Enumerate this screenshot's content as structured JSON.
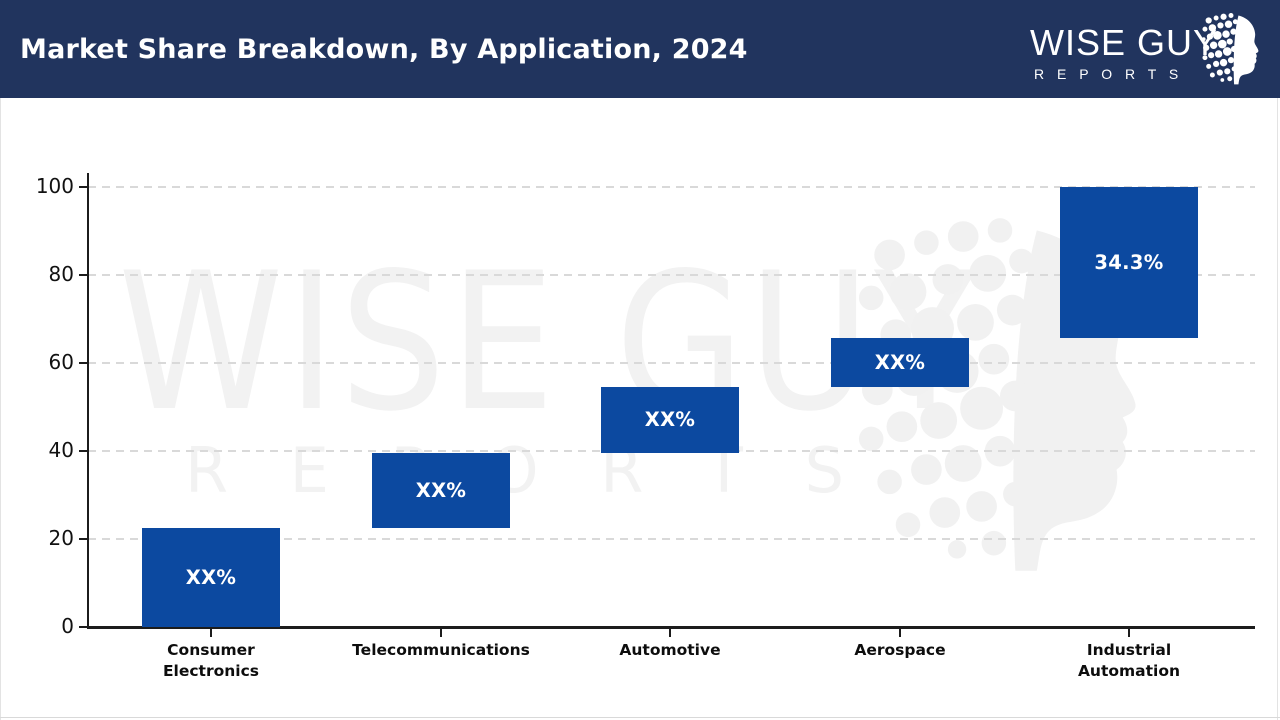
{
  "header": {
    "bg_color": "#21345e",
    "title": "Market Share Breakdown, By Application, 2024",
    "logo": {
      "wordmark": "WISE GUY",
      "subtitle": "R E P O R T S"
    }
  },
  "watermark": {
    "wordmark": "WISE GUY",
    "subtitle": "R E P O R T S"
  },
  "chart_data": {
    "type": "bar",
    "variant": "waterfall",
    "title": "Market Share Breakdown, By Application, 2024",
    "unit": "percent market share",
    "categories": [
      "Consumer Electronics",
      "Telecommunications",
      "Automotive",
      "Aerospace",
      "Industrial Automation"
    ],
    "category_label_lines": [
      [
        "Consumer",
        "Electronics"
      ],
      [
        "Telecommunications"
      ],
      [
        "Automotive"
      ],
      [
        "Aerospace"
      ],
      [
        "Industrial",
        "Automation"
      ]
    ],
    "segments": [
      {
        "category": "Consumer Electronics",
        "start": 0,
        "end": 22.5,
        "label": "XX%"
      },
      {
        "category": "Telecommunications",
        "start": 22.5,
        "end": 39.6,
        "label": "XX%"
      },
      {
        "category": "Automotive",
        "start": 39.6,
        "end": 54.5,
        "label": "XX%"
      },
      {
        "category": "Aerospace",
        "start": 54.5,
        "end": 65.7,
        "label": "XX%"
      },
      {
        "category": "Industrial Automation",
        "start": 65.7,
        "end": 100,
        "label": "34.3%"
      }
    ],
    "bar_color": "#0c49a0",
    "bar_label_color": "#ffffff",
    "ylim": [
      0,
      100
    ],
    "yticks": [
      0,
      20,
      40,
      60,
      80,
      100
    ],
    "grid": {
      "horizontal": true,
      "style": "dashed",
      "color": "#d9d9d9"
    },
    "legend": null
  }
}
